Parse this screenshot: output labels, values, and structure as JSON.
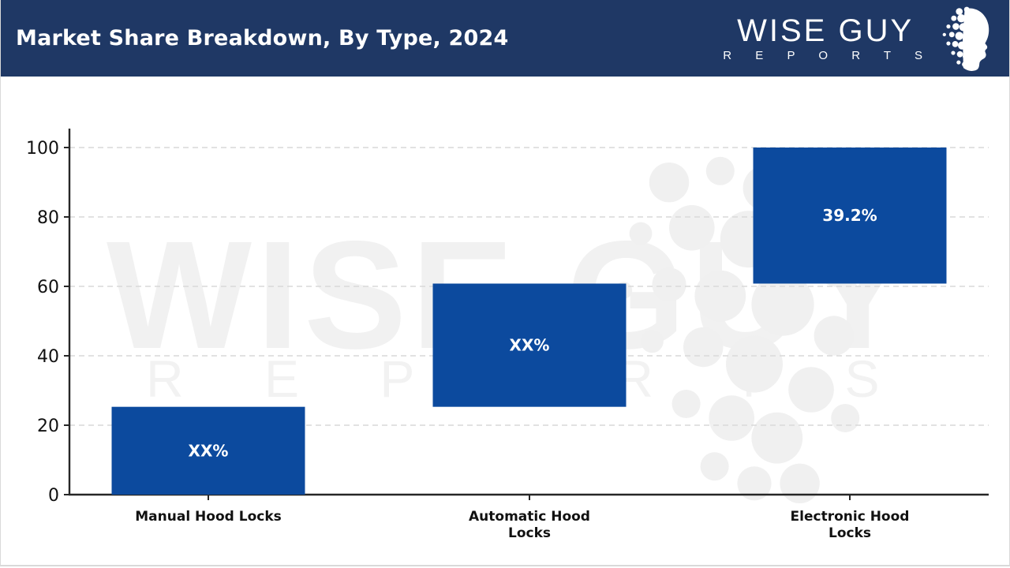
{
  "header": {
    "title": "Market Share Breakdown, By Type, 2024",
    "bg_color": "#1f3865",
    "logo": {
      "line1": "WISE GUY",
      "line2": "R E P O R T S"
    }
  },
  "watermark": {
    "line1": "WISE GUY",
    "line2": "R E P O R T S"
  },
  "chart_data": {
    "type": "bar",
    "subtype": "floating-segment-waterfall",
    "title": "Market Share Breakdown, By Type, 2024",
    "categories": [
      "Manual Hood Locks",
      "Automatic Hood Locks",
      "Electronic Hood Locks"
    ],
    "category_label_lines": [
      [
        "Manual Hood Locks"
      ],
      [
        "Automatic Hood",
        "Locks"
      ],
      [
        "Electronic Hood",
        "Locks"
      ]
    ],
    "series": [
      {
        "name": "Market Share (%)",
        "segments": [
          {
            "category": "Manual Hood Locks",
            "start": 0,
            "end": 25.3,
            "label": "XX%"
          },
          {
            "category": "Automatic Hood Locks",
            "start": 25.3,
            "end": 60.8,
            "label": "XX%"
          },
          {
            "category": "Electronic Hood Locks",
            "start": 60.8,
            "end": 100,
            "label": "39.2%"
          }
        ]
      }
    ],
    "xlabel": "",
    "ylabel": "",
    "ylim": [
      0,
      100
    ],
    "yticks": [
      0,
      20,
      40,
      60,
      80,
      100
    ],
    "grid": "horizontal-dashed",
    "legend": "none",
    "bar_color": "#0c4a9e",
    "bar_label_color": "#ffffff",
    "axis_color": "#262626",
    "tick_label_color": "#111111",
    "gridline_color": "#d9d9d9"
  }
}
